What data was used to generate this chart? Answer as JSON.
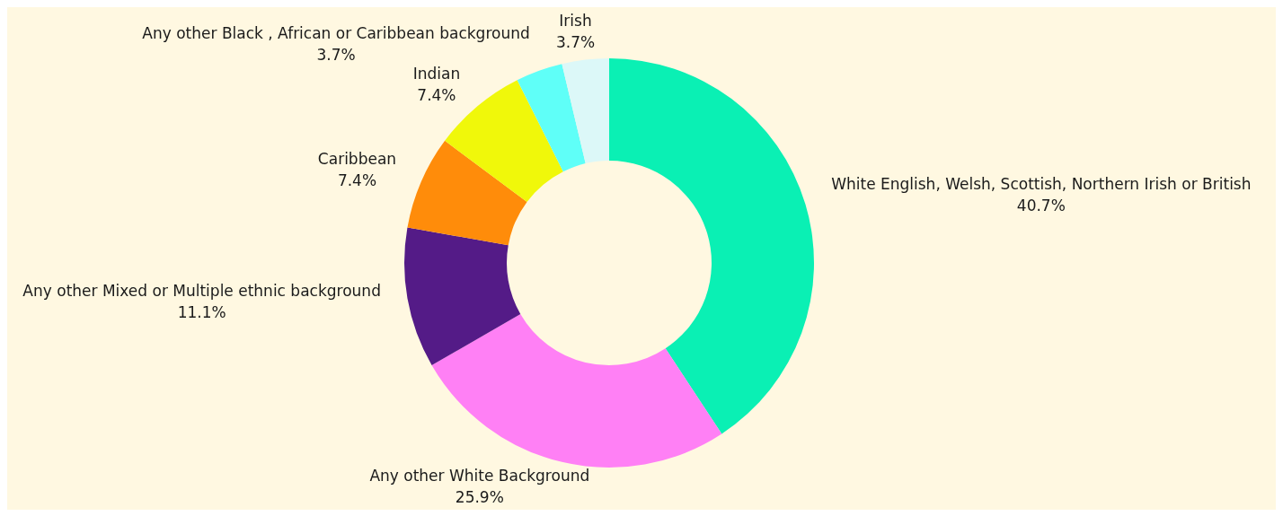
{
  "chart_data": {
    "type": "donut",
    "categories": [
      "White English, Welsh, Scottish, Northern Irish or British",
      "Any other White Background",
      "Any other Mixed or Multiple ethnic background",
      "Caribbean",
      "Indian",
      "Any other Black , African or Caribbean background",
      "Irish"
    ],
    "values": [
      40.7,
      25.9,
      11.1,
      7.4,
      7.4,
      3.7,
      3.7
    ],
    "value_labels": [
      "40.7%",
      "25.9%",
      "11.1%",
      "7.4%",
      "7.4%",
      "3.7%",
      "3.7%"
    ],
    "colors": [
      "#0af0b4",
      "#ff80f5",
      "#541b87",
      "#ff8c0a",
      "#f0f80a",
      "#5ffff8",
      "#dcf8f8"
    ],
    "legend": false
  }
}
